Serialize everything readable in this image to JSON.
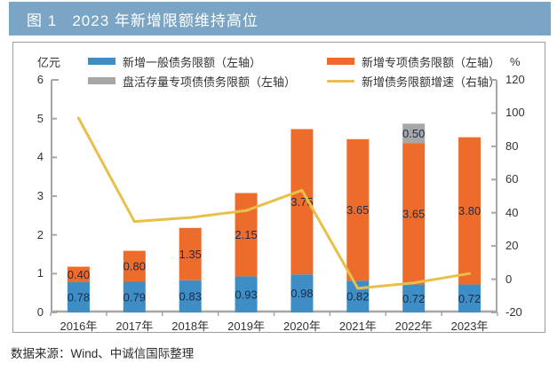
{
  "header": {
    "title": "图 1   2023 年新增限额维持高位"
  },
  "source": "数据来源：Wind、中诚信国际整理",
  "colors": {
    "title_bar": "#7AA5C4",
    "general_debt_bar": "#3E8EC5",
    "special_debt_bar": "#ED6C2B",
    "stock_special_debt_bar": "#A7A7A7",
    "growth_line": "#E8C049",
    "value_label": "#1C2B4A",
    "axis": "#A6A6A6"
  },
  "chart_data": {
    "type": "bar",
    "subtype": "stacked-bar-with-line",
    "title": "2023 年新增限额维持高位",
    "categories": [
      "2016年",
      "2017年",
      "2018年",
      "2019年",
      "2020年",
      "2021年",
      "2022年",
      "2023年"
    ],
    "series": [
      {
        "name": "新增一般债务限额（左轴）",
        "type": "bar",
        "axis": "left",
        "color": "#3E8EC5",
        "values": [
          0.78,
          0.79,
          0.83,
          0.93,
          0.98,
          0.82,
          0.72,
          0.72
        ]
      },
      {
        "name": "新增专项债务限额（左轴）",
        "type": "bar",
        "axis": "left",
        "color": "#ED6C2B",
        "values": [
          0.4,
          0.8,
          1.35,
          2.15,
          3.75,
          3.65,
          3.65,
          3.8
        ]
      },
      {
        "name": "盘活存量专项债债务限额（左轴）",
        "type": "bar",
        "axis": "left",
        "color": "#A7A7A7",
        "values": [
          null,
          null,
          null,
          null,
          null,
          null,
          0.5,
          null
        ]
      },
      {
        "name": "新增债务限额增速（右轴）",
        "type": "line",
        "axis": "right",
        "color": "#E8C049",
        "values": [
          97.0,
          34.7,
          37.1,
          41.3,
          53.6,
          -5.5,
          -2.2,
          3.4
        ]
      }
    ],
    "left_axis": {
      "unit": "亿元",
      "min": 0,
      "max": 6,
      "ticks": [
        0,
        1,
        2,
        3,
        4,
        5,
        6
      ]
    },
    "right_axis": {
      "unit": "%",
      "min": -20,
      "max": 120,
      "ticks": [
        -20,
        0,
        20,
        40,
        60,
        80,
        100,
        120
      ]
    },
    "grid": false,
    "legend_position": "top",
    "value_labels": "shown on bar segments, 2 decimals"
  }
}
